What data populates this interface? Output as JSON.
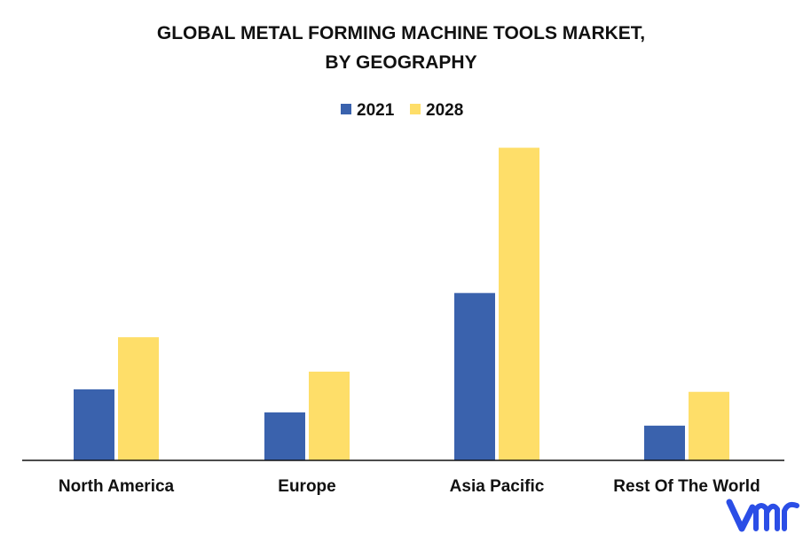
{
  "chart_data": {
    "type": "bar",
    "title_line1": "GLOBAL METAL FORMING MACHINE TOOLS MARKET,",
    "title_line2": "BY GEOGRAPHY",
    "categories": [
      "North America",
      "Europe",
      "Asia Pacific",
      "Rest Of The World"
    ],
    "series": [
      {
        "name": "2021",
        "color": "#3a62ad",
        "values": [
          22.5,
          15.2,
          53.0,
          11.0
        ]
      },
      {
        "name": "2028",
        "color": "#fede69",
        "values": [
          39.0,
          28.1,
          99.0,
          21.7
        ]
      }
    ],
    "ylim": [
      0,
      100
    ],
    "grid": false,
    "legend_position": "top-center",
    "axis_color": "#111111"
  },
  "logo": {
    "text": "vmr",
    "color": "#2b4ee6",
    "icon": "vmr-logo"
  }
}
